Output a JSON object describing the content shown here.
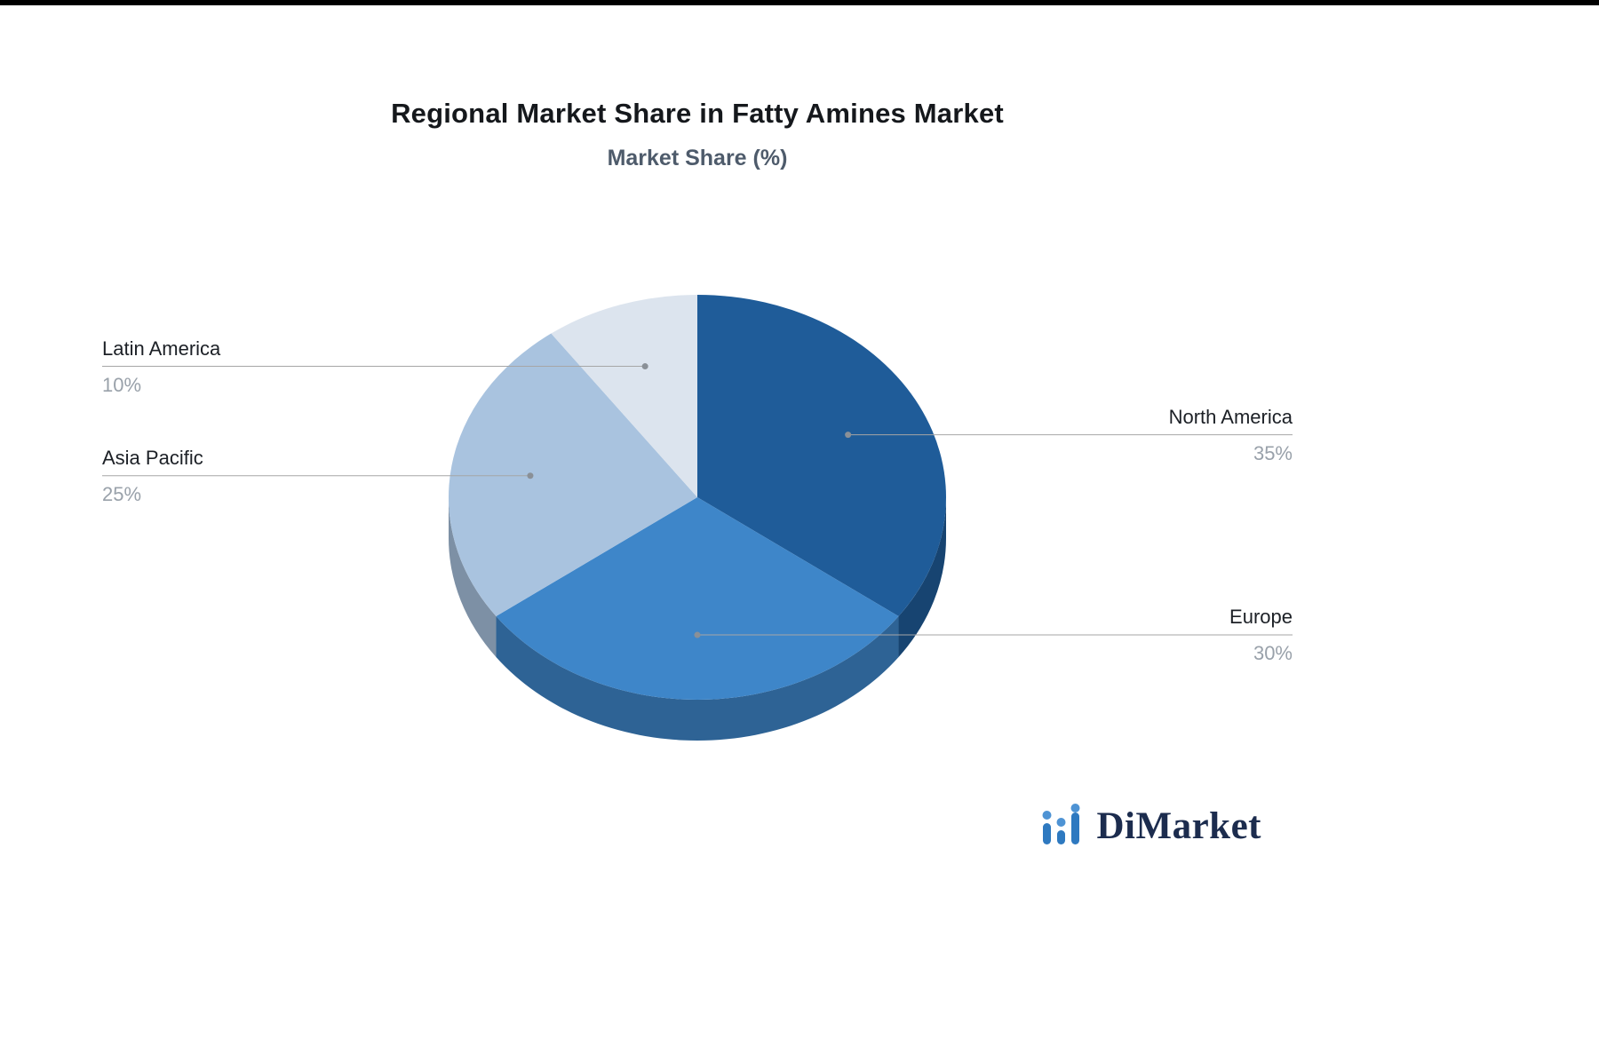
{
  "chart_data": {
    "type": "pie",
    "style": "pie-3d",
    "title": "Regional Market Share in Fatty Amines Market",
    "subtitle": "Market Share (%)",
    "unit": "%",
    "labels": [
      "North America",
      "Europe",
      "Asia Pacific",
      "Latin America"
    ],
    "values": [
      35,
      30,
      25,
      10
    ],
    "value_labels": [
      "35%",
      "30%",
      "25%",
      "10%"
    ],
    "colors": [
      "#1F5C99",
      "#3E86C9",
      "#A9C3DF",
      "#DCE4EE"
    ],
    "start_angle_deg": 0,
    "direction": "clockwise",
    "legend_position": "none",
    "label_style": "callout-leader-lines",
    "leader_line_color": "#a6a6a6",
    "leader_dot_color": "#8a9097"
  },
  "branding": {
    "logo_text": "DiMarket",
    "logo_icon": "bar-chart-icon",
    "logo_text_color": "#1c2c4e",
    "logo_icon_color": "#2e79c0"
  }
}
